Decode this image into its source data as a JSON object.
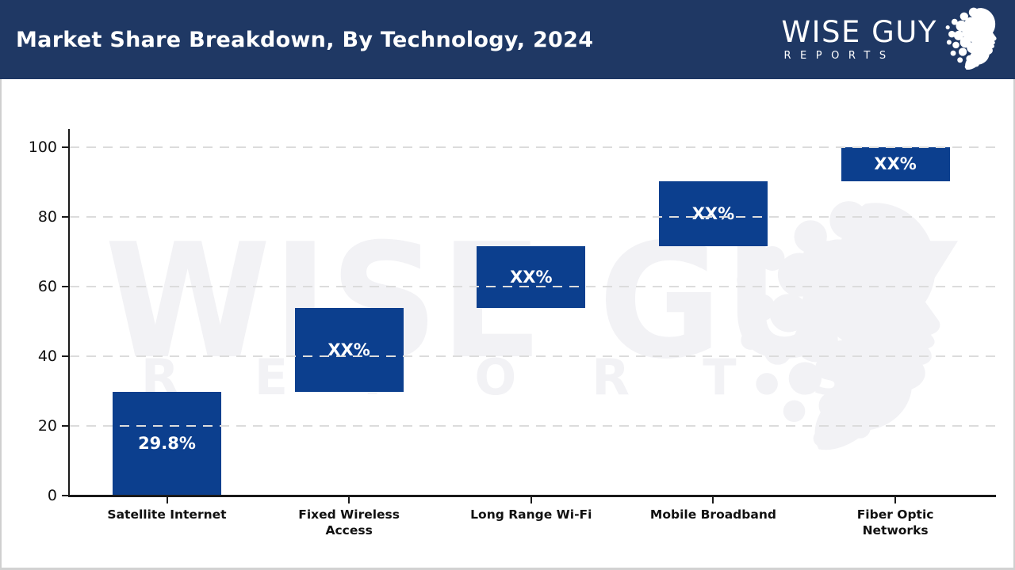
{
  "header": {
    "title": "Market Share Breakdown, By Technology, 2024",
    "bg_color": "#1F3864",
    "logo": {
      "name": "WISE GUY",
      "tagline": "REPORTS"
    }
  },
  "watermark": {
    "line1": "WISE GUY",
    "line2": "REPORTS"
  },
  "chart_data": {
    "type": "bar",
    "subtype": "waterfall-floating-bars",
    "title": "Market Share Breakdown, By Technology, 2024",
    "categories": [
      "Satellite Internet",
      "Fixed Wireless Access",
      "Long Range Wi-Fi",
      "Mobile Broadband",
      "Fiber Optic Networks"
    ],
    "tick_labels": [
      "Satellite Internet",
      "Fixed Wireless\nAccess",
      "Long Range Wi-Fi",
      "Mobile Broadband",
      "Fiber Optic\nNetworks"
    ],
    "segments": [
      {
        "category": "Satellite Internet",
        "start": 0,
        "end": 29.8,
        "value": 29.8,
        "value_label": "29.8%"
      },
      {
        "category": "Fixed Wireless Access",
        "start": 29.8,
        "end": 53.8,
        "value": 24.0,
        "value_label": "XX%"
      },
      {
        "category": "Long Range Wi-Fi",
        "start": 53.8,
        "end": 71.5,
        "value": 17.7,
        "value_label": "XX%"
      },
      {
        "category": "Mobile Broadband",
        "start": 71.5,
        "end": 90.3,
        "value": 18.8,
        "value_label": "XX%"
      },
      {
        "category": "Fiber Optic Networks",
        "start": 90.3,
        "end": 100.0,
        "value": 9.7,
        "value_label": "XX%"
      }
    ],
    "yticks": [
      0,
      20,
      40,
      60,
      80,
      100
    ],
    "ylim": [
      0,
      105
    ],
    "xlabel": "",
    "ylabel": "",
    "grid": "horizontal-dashed-on-top",
    "legend": "none",
    "bar_color": "#0C3F8E",
    "axis_color": "#1a1a1a",
    "grid_color": "#dcdcdc",
    "value_label_color": "#ffffff"
  }
}
